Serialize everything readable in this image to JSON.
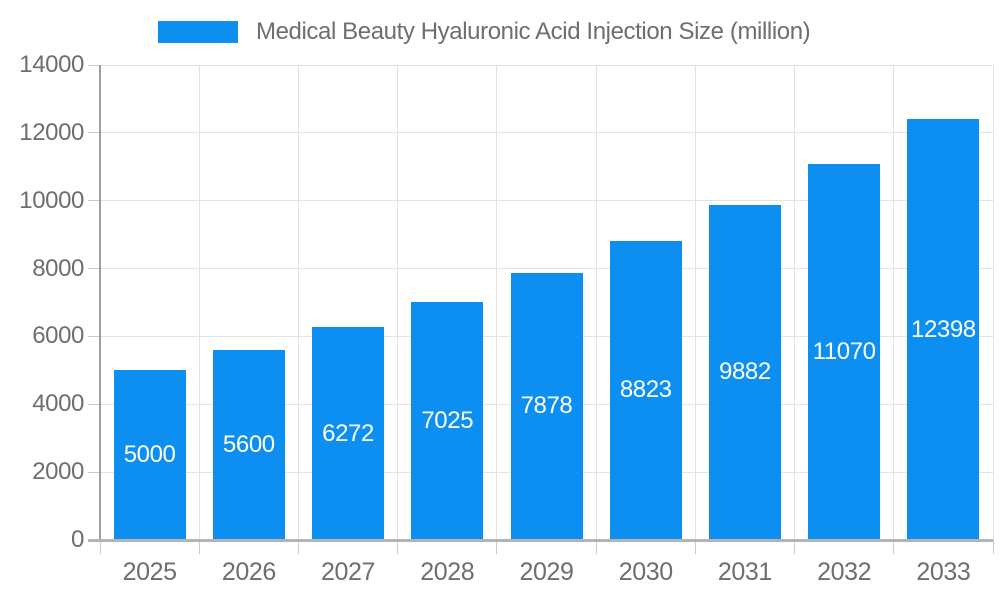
{
  "chart_data": {
    "type": "bar",
    "title": "Medical Beauty Hyaluronic Acid Injection Size (million)",
    "categories": [
      "2025",
      "2026",
      "2027",
      "2028",
      "2029",
      "2030",
      "2031",
      "2032",
      "2033"
    ],
    "values": [
      5000,
      5600,
      6272,
      7025,
      7878,
      8823,
      9882,
      11070,
      12398
    ],
    "xlabel": "",
    "ylabel": "",
    "ylim": [
      0,
      14000
    ],
    "yticks": [
      0,
      2000,
      4000,
      6000,
      8000,
      10000,
      12000,
      14000
    ],
    "grid": true,
    "legend_position": "top",
    "value_labels_inside_bars": true,
    "colors": {
      "bar": "#0D8FF2",
      "text": "#6e6e6e",
      "grid": "#e3e3e3",
      "tick": "#c9c9c9",
      "axis_line": "#9e9e9e",
      "baseline": "#b3b3b3",
      "value_label": "#ffffff",
      "background": "#ffffff"
    }
  }
}
